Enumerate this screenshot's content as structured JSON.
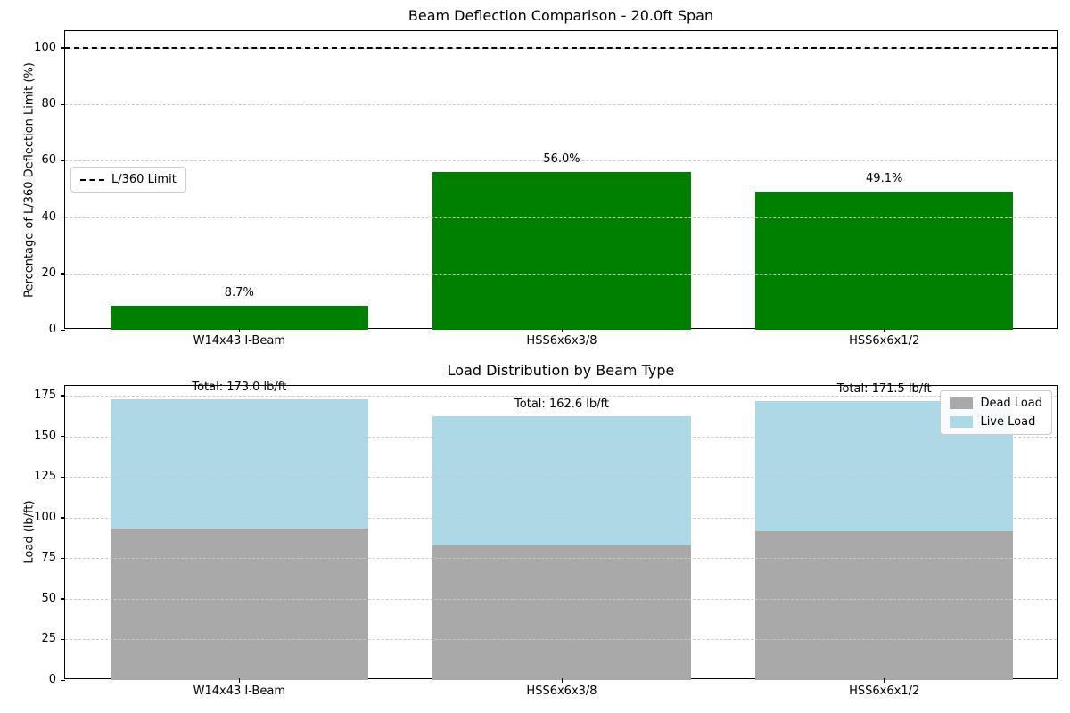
{
  "figure": {
    "background": "#ffffff"
  },
  "chart_data": [
    {
      "type": "bar",
      "title": "Beam Deflection Comparison - 20.0ft Span",
      "xlabel": "",
      "ylabel": "Percentage of L/360 Deflection Limit (%)",
      "categories": [
        "W14x43 I-Beam",
        "HSS6x6x3/8",
        "HSS6x6x1/2"
      ],
      "values": [
        8.7,
        56.0,
        49.1
      ],
      "bar_labels": [
        "8.7%",
        "56.0%",
        "49.1%"
      ],
      "bar_color": "#008000",
      "yticks": [
        0,
        20,
        40,
        60,
        80,
        100
      ],
      "ylim": [
        0,
        106
      ],
      "grid": true,
      "gridline_color": "#c9c9c9",
      "reference_line": {
        "value": 100,
        "color": "#000000",
        "style": "dashed"
      },
      "legend": {
        "position": "center-left",
        "entries": [
          {
            "label": "L/360 Limit",
            "type": "dashed-line",
            "color": "#000000"
          }
        ]
      }
    },
    {
      "type": "stacked-bar",
      "title": "Load Distribution by Beam Type",
      "xlabel": "",
      "ylabel": "Load (lb/ft)",
      "categories": [
        "W14x43 I-Beam",
        "HSS6x6x3/8",
        "HSS6x6x1/2"
      ],
      "series": [
        {
          "name": "Dead Load",
          "color": "#a9a9a9",
          "values": [
            93.0,
            82.6,
            91.5
          ]
        },
        {
          "name": "Live Load",
          "color": "#add8e6",
          "values": [
            80.0,
            80.0,
            80.0
          ]
        }
      ],
      "totals": [
        173.0,
        162.6,
        171.5
      ],
      "total_labels": [
        "Total: 173.0 lb/ft",
        "Total: 162.6 lb/ft",
        "Total: 171.5 lb/ft"
      ],
      "yticks": [
        0,
        25,
        50,
        75,
        100,
        125,
        150,
        175
      ],
      "ylim": [
        0,
        181
      ],
      "grid": true,
      "gridline_color": "#c9c9c9",
      "legend": {
        "position": "top-right",
        "entries": [
          {
            "label": "Dead Load",
            "type": "patch",
            "color": "#a9a9a9"
          },
          {
            "label": "Live Load",
            "type": "patch",
            "color": "#add8e6"
          }
        ]
      }
    }
  ]
}
